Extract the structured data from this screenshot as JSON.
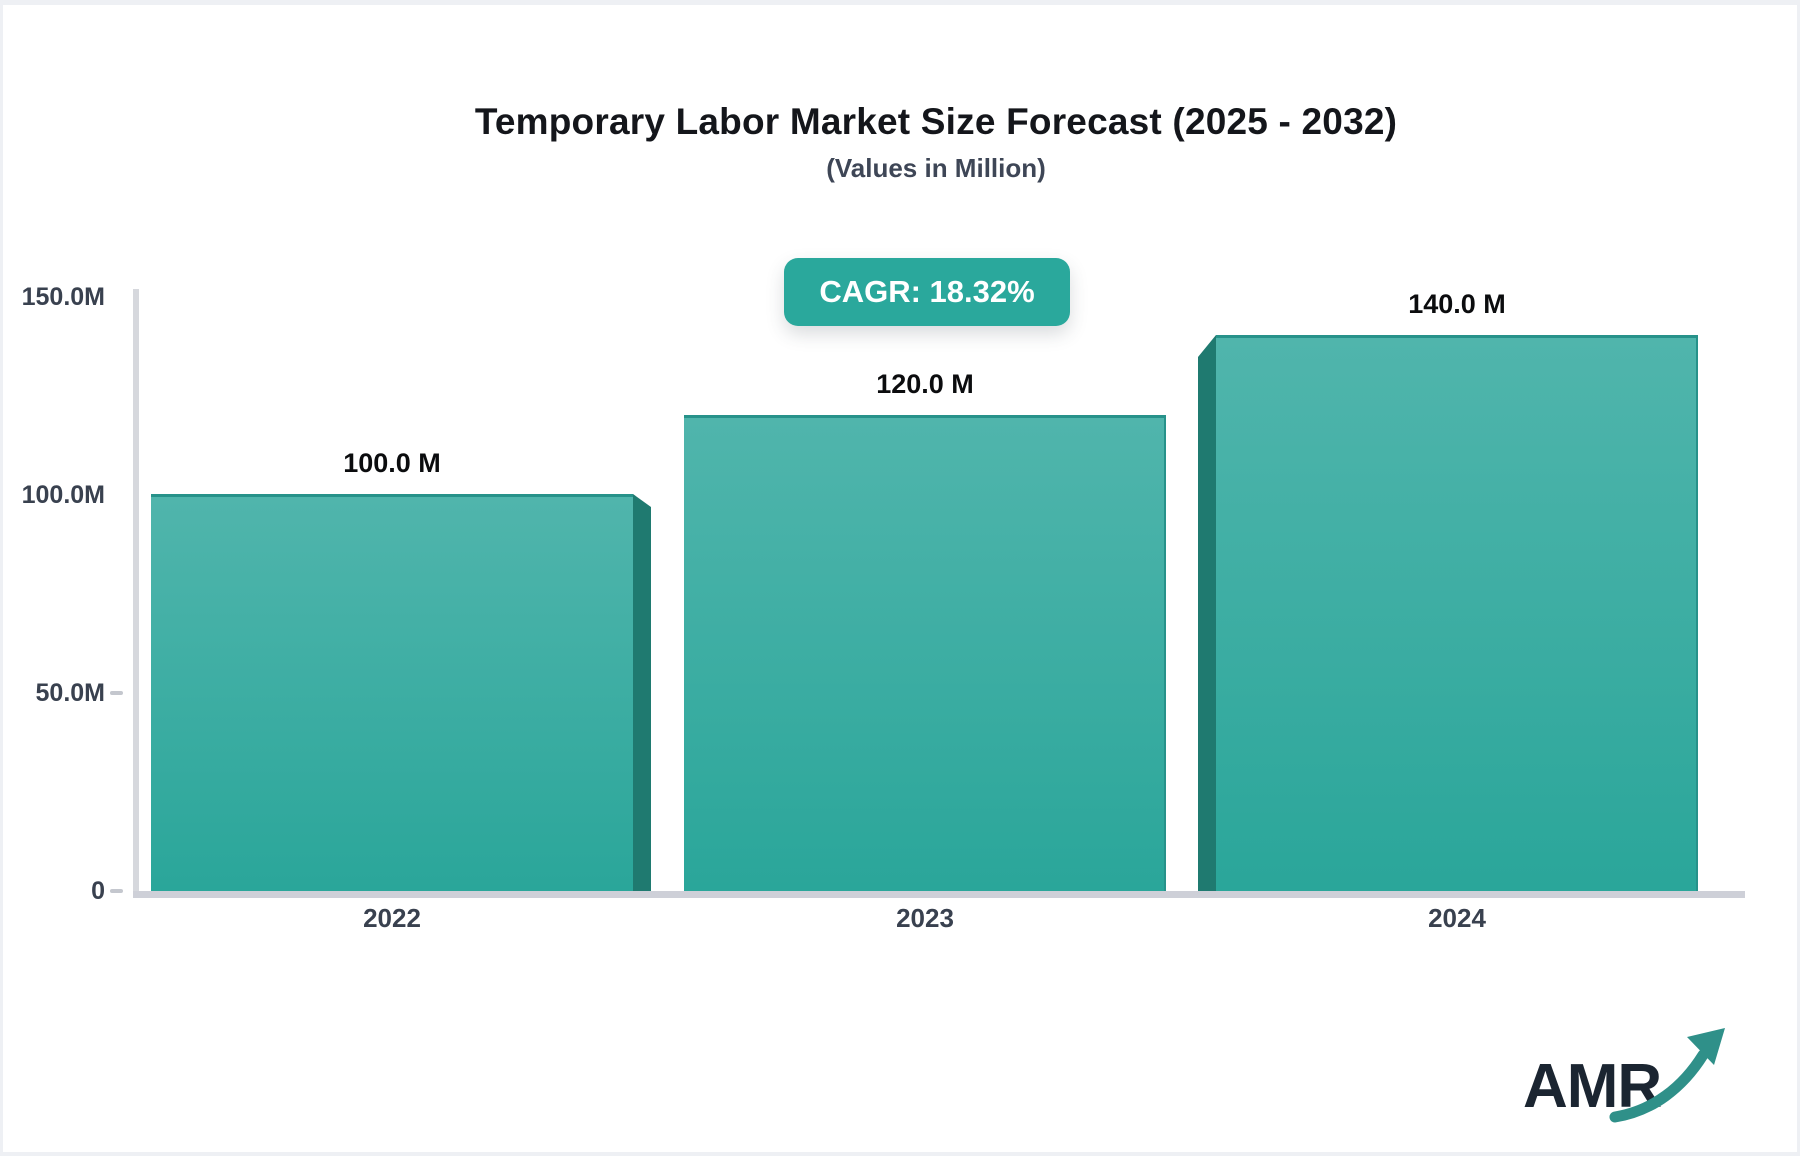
{
  "header": {
    "title": "Temporary Labor Market Size Forecast (2025 - 2032)",
    "subtitle": "(Values in Million)",
    "cagr_label": "CAGR: 18.32%"
  },
  "chart_data": {
    "type": "bar",
    "title": "Temporary Labor Market Size Forecast (2025 - 2032)",
    "subtitle": "(Values in Million)",
    "unit": "Million",
    "cagr_pct": 18.32,
    "categories": [
      "2022",
      "2023",
      "2024"
    ],
    "values": [
      100.0,
      120.0,
      140.0
    ],
    "value_labels": [
      "100.0 M",
      "120.0 M",
      "140.0 M"
    ],
    "yticks": [
      "150.0M",
      "100.0M",
      "50.0M",
      "0"
    ],
    "ylim": [
      0,
      150
    ],
    "grid": false,
    "legend": false,
    "bar_color_top": "#50b5ac",
    "bar_color_bottom": "#2aa69a",
    "bar_side_color": "#1f7a70"
  },
  "logo": {
    "text": "AMR"
  },
  "colors": {
    "accent_teal": "#2aa89c",
    "axis_gray": "#ced0d8",
    "label_slate": "#39414f"
  }
}
